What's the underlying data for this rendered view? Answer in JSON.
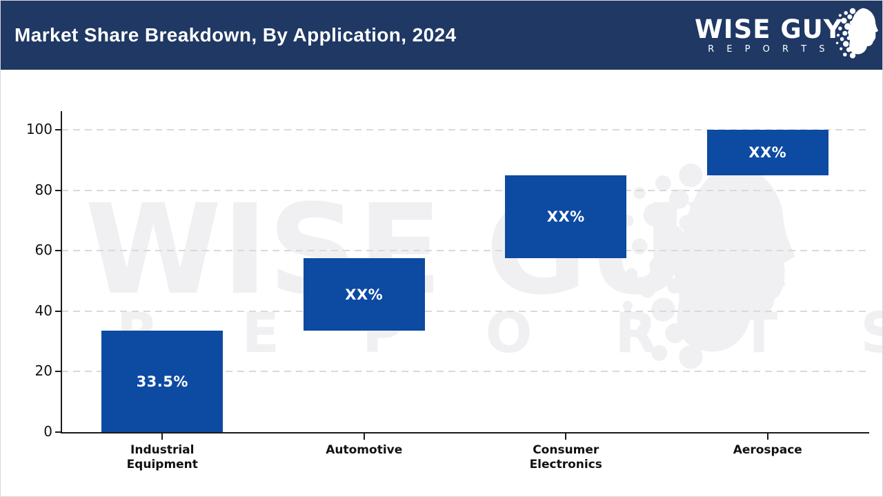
{
  "header": {
    "title": "Market Share Breakdown, By Application, 2024",
    "brand": {
      "name": "WISE GUY",
      "sub": "R E P O R T S"
    }
  },
  "watermark": {
    "line1": "WISE GUY",
    "line2": "R E P O R T S"
  },
  "colors": {
    "header_bg": "#1f3864",
    "bar": "#0d4aa2",
    "grid": "#d9d9d9",
    "axis": "#1a1a1a",
    "watermark": "#f0f0f2",
    "value_label": "#ffffff"
  },
  "chart_data": {
    "type": "bar",
    "variant": "waterfall",
    "title": "Market Share Breakdown, By Application, 2024",
    "categories": [
      "Industrial Equipment",
      "Automotive",
      "Consumer Electronics",
      "Aerospace"
    ],
    "segments": [
      {
        "category": "Industrial Equipment",
        "start": 0,
        "end": 33.5,
        "value_label": "33.5%"
      },
      {
        "category": "Automotive",
        "start": 33.5,
        "end": 57.5,
        "value_label": "XX%"
      },
      {
        "category": "Consumer Electronics",
        "start": 57.5,
        "end": 85,
        "value_label": "XX%"
      },
      {
        "category": "Aerospace",
        "start": 85,
        "end": 100,
        "value_label": "XX%"
      }
    ],
    "y_ticks": [
      0,
      20,
      40,
      60,
      80,
      100
    ],
    "ylim": [
      0,
      106
    ],
    "xlabel": "",
    "ylabel": "",
    "grid": "horizontal-dashed",
    "legend": "none",
    "bar_color": "#0d4aa2",
    "value_label_color": "#ffffff"
  }
}
